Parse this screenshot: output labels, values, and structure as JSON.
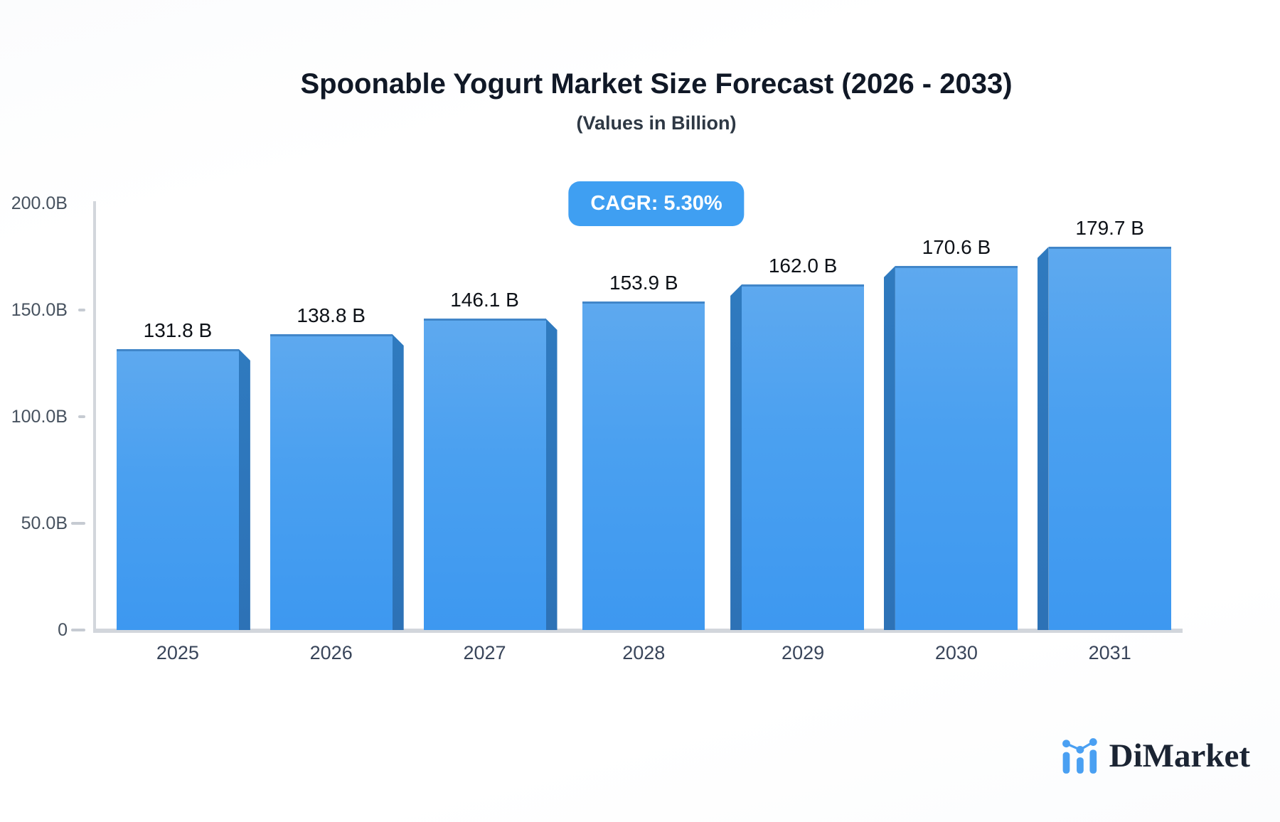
{
  "header": {
    "title": "Spoonable Yogurt Market Size Forecast (2026 - 2033)",
    "subtitle": "(Values in Billion)",
    "badge": "CAGR: 5.30%"
  },
  "brand": {
    "name": "DiMarket",
    "icon": "bar-line-chart-icon"
  },
  "colors": {
    "accent_blue": "#3f9ff2",
    "bar_face_top": "#5ea9ef",
    "bar_face_bottom": "#3d98f0",
    "bar_side": "#2e75ba",
    "axis_gray": "#d2d6dc",
    "text_dark": "#101826",
    "brand_navy": "#1b2433"
  },
  "chart_data": {
    "type": "bar",
    "title": "Spoonable Yogurt Market Size Forecast (2026 - 2033)",
    "subtitle": "(Values in Billion)",
    "categories": [
      "2025",
      "2026",
      "2027",
      "2028",
      "2029",
      "2030",
      "2031"
    ],
    "values": [
      131.8,
      138.8,
      146.1,
      153.9,
      162.0,
      170.6,
      179.7
    ],
    "value_labels": [
      "131.8 B",
      "138.8 B",
      "146.1 B",
      "153.9 B",
      "162.0 B",
      "170.6 B",
      "179.7 B"
    ],
    "unit": "Billion",
    "ylabel": "",
    "xlabel": "",
    "ylim": [
      0,
      200
    ],
    "y_ticks": [
      {
        "value": 0,
        "label": "0"
      },
      {
        "value": 50,
        "label": "50.0B"
      },
      {
        "value": 100,
        "label": "100.0B"
      },
      {
        "value": 150,
        "label": "150.0B"
      },
      {
        "value": 200,
        "label": "200.0B"
      }
    ],
    "legend": null,
    "grid": false,
    "style": "3d-columns, blue gradient, value labels above bars"
  }
}
